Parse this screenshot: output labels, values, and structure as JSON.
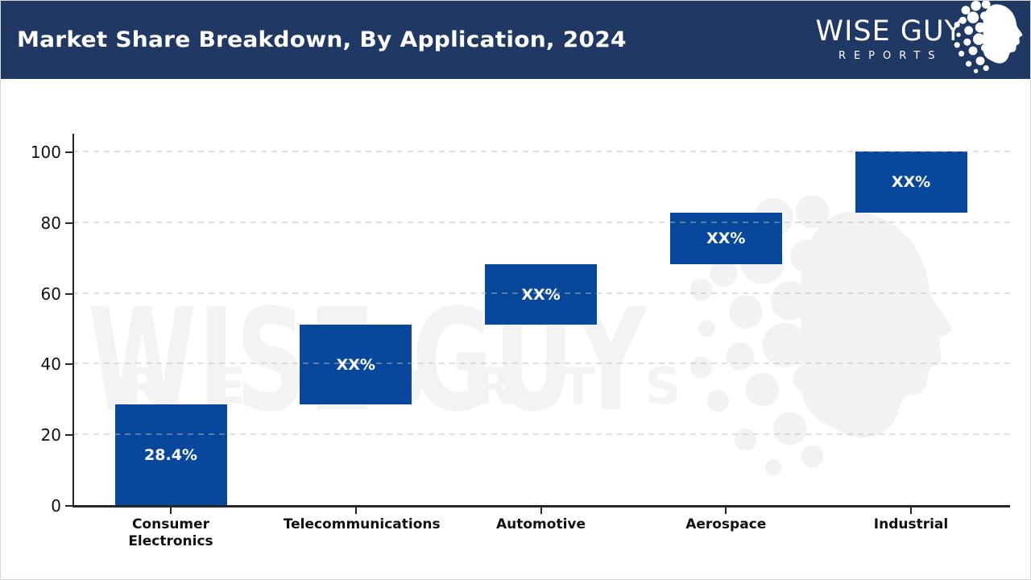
{
  "header": {
    "title": "Market Share Breakdown, By Application, 2024",
    "background": "#1f3864"
  },
  "brand": {
    "name": "WISE GUY",
    "tagline": "REPORTS",
    "head_icon": "dotted-face-profile"
  },
  "watermark": {
    "line1": "WISE GUY",
    "line2": "REPORTS",
    "head_icon": "dotted-face-profile",
    "color": "#f3f3f3"
  },
  "colors": {
    "bar": "#08489c",
    "header_bg": "#1f3864",
    "axis": "#262626",
    "tick_text": "#111111",
    "bar_label_text": "#ffffff",
    "grid": "#d9d9d9"
  },
  "chart_data": {
    "type": "bar",
    "subtype": "waterfall",
    "title": "Market Share Breakdown, By Application, 2024",
    "categories": [
      "Consumer Electronics",
      "Telecommunications",
      "Automotive",
      "Aerospace",
      "Industrial"
    ],
    "segments": [
      {
        "category": "Consumer Electronics",
        "start": 0,
        "end": 28.4,
        "label": "28.4%"
      },
      {
        "category": "Telecommunications",
        "start": 28.4,
        "end": 51.0,
        "label": "XX%"
      },
      {
        "category": "Automotive",
        "start": 51.0,
        "end": 68.1,
        "label": "XX%"
      },
      {
        "category": "Aerospace",
        "start": 68.1,
        "end": 82.7,
        "label": "XX%"
      },
      {
        "category": "Industrial",
        "start": 82.7,
        "end": 100.0,
        "label": "XX%"
      }
    ],
    "xlabel": "",
    "ylabel": "",
    "ylim": [
      0,
      100
    ],
    "yticks": [
      0,
      20,
      40,
      60,
      80,
      100
    ],
    "grid": "horizontal-dashed",
    "legend": null,
    "bar_color": "#08489c"
  }
}
